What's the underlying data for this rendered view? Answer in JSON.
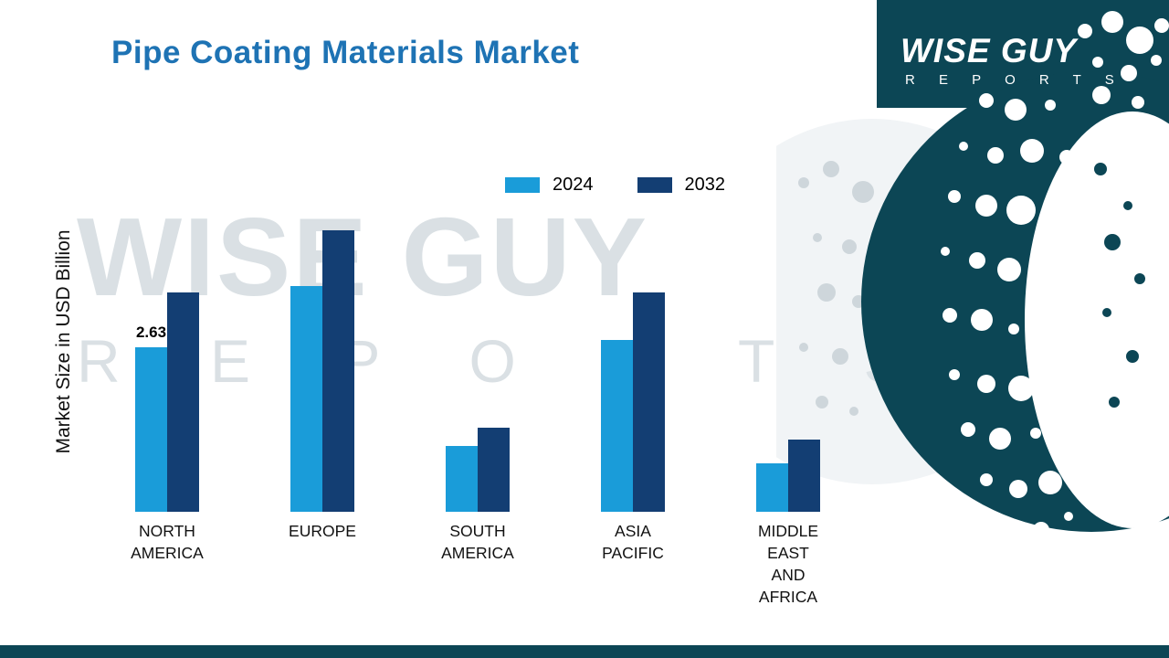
{
  "title": "Pipe Coating Materials Market",
  "logo": {
    "name": "WISE GUY",
    "sub": "R E P O R T S"
  },
  "watermark": {
    "line1": "WISE GUY",
    "line2": "R E P O R T S"
  },
  "colors": {
    "series_2024": "#1a9cd9",
    "series_2032": "#133e73",
    "brand_teal": "#0c4655",
    "title_blue": "#1e73b4",
    "watermark_gray": "#9fb0ba"
  },
  "chart_data": {
    "type": "bar",
    "title": "Pipe Coating Materials Market",
    "xlabel": "",
    "ylabel": "Market Size in USD Billion",
    "ylim": [
      0,
      4.7
    ],
    "grid": false,
    "legend_position": "top-center",
    "categories": [
      "NORTH\nAMERICA",
      "EUROPE",
      "SOUTH\nAMERICA",
      "ASIA\nPACIFIC",
      "MIDDLE\nEAST\nAND\nAFRICA"
    ],
    "series": [
      {
        "name": "2024",
        "color": "#1a9cd9",
        "values": [
          2.63,
          3.6,
          1.05,
          2.75,
          0.78
        ]
      },
      {
        "name": "2032",
        "color": "#133e73",
        "values": [
          3.5,
          4.5,
          1.35,
          3.5,
          1.15
        ]
      }
    ],
    "data_labels": [
      {
        "series_index": 0,
        "category_index": 0,
        "text": "2.63"
      }
    ]
  }
}
